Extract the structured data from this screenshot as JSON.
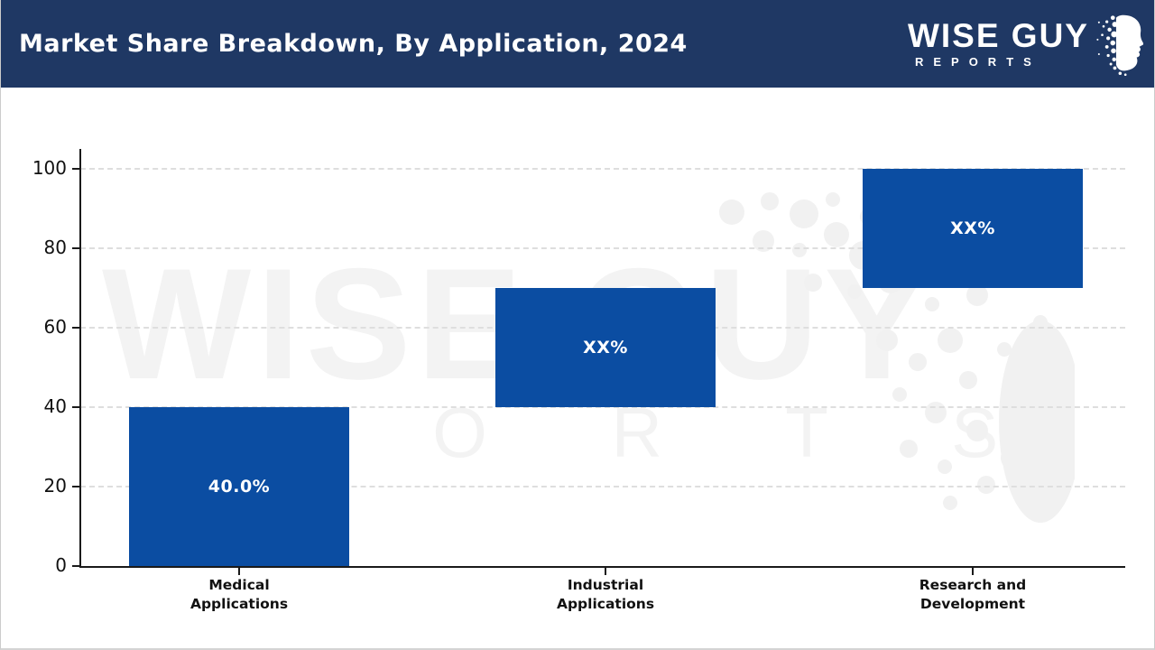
{
  "header": {
    "title": "Market Share Breakdown, By Application, 2024",
    "logo": {
      "line1": "WISE GUY",
      "line2": "REPORTS"
    }
  },
  "watermark": {
    "line1": "WISE GUY",
    "line2": "P O R T S"
  },
  "chart_data": {
    "type": "bar",
    "variant": "floating-range waterfall segments",
    "title": "Market Share Breakdown, By Application, 2024",
    "categories": [
      {
        "line1": "Medical",
        "line2": "Applications"
      },
      {
        "line1": "Industrial",
        "line2": "Applications"
      },
      {
        "line1": "Research and",
        "line2": "Development"
      }
    ],
    "bars": [
      {
        "category": "Medical Applications",
        "label": "40.0%",
        "range": [
          0,
          40
        ]
      },
      {
        "category": "Industrial Applications",
        "label": "XX%",
        "range": [
          40,
          70
        ]
      },
      {
        "category": "Research and Development",
        "label": "XX%",
        "range": [
          70,
          100
        ]
      }
    ],
    "yticks": [
      0,
      20,
      40,
      60,
      80,
      100
    ],
    "ylim": [
      0,
      100
    ],
    "grid": "horizontal-dashed",
    "legend": "none",
    "colors": {
      "bar": "#0b4da2",
      "header_bg": "#1f3864",
      "grid": "#dedede",
      "axis": "#1a1a1a",
      "bar_label": "#ffffff",
      "watermark": "#f3f3f3"
    }
  }
}
